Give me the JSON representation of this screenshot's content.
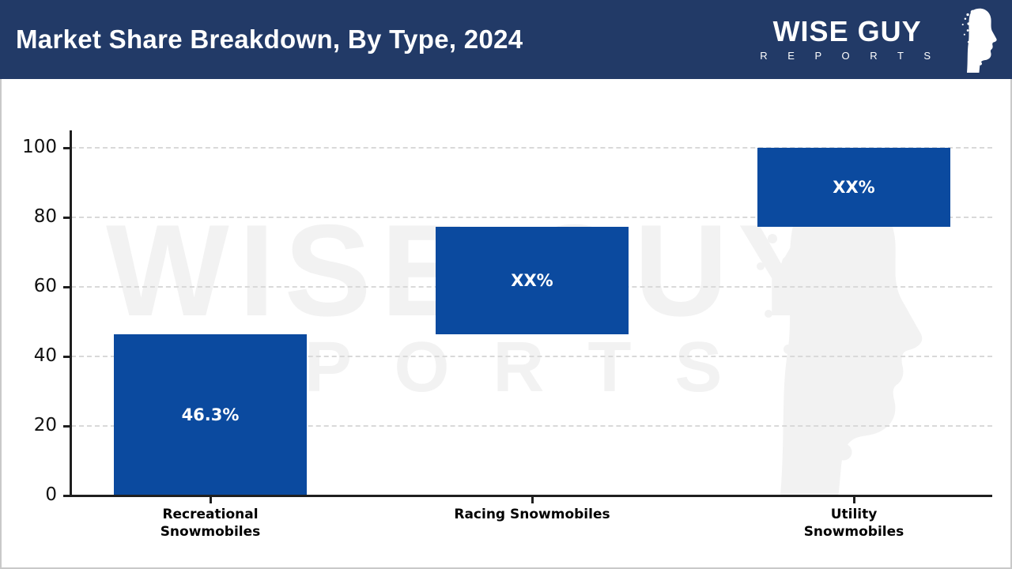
{
  "header": {
    "title": "Market Share Breakdown, By Type, 2024",
    "logo": {
      "brand": "WISE GUY",
      "tagline": "R E P O R T S"
    }
  },
  "watermark": {
    "brand": "WISE GUY",
    "tagline": "R E P O R T S"
  },
  "colors": {
    "header_bg": "#223A67",
    "title_text": "#FFFFFF",
    "bar_fill": "#0B4A9F",
    "bar_label_text": "#FFFFFF",
    "gridline": "#D9D9D9",
    "axis": "#1F1F1F",
    "tick_label_text": "#111111",
    "watermark": "#F2F2F2",
    "page_border": "#C9C9C9"
  },
  "chart_data": {
    "type": "bar",
    "variant": "floating stacked bars (waterfall of market share summing to 100%)",
    "title": "Market Share Breakdown, By Type, 2024",
    "xlabel": "",
    "ylabel": "",
    "ylim": [
      0,
      100
    ],
    "y_ticks": [
      0,
      20,
      40,
      60,
      80,
      100
    ],
    "grid": "horizontal dashed",
    "legend": "none",
    "categories": [
      "Recreational Snowmobiles",
      "Racing Snowmobiles",
      "Utility Snowmobiles"
    ],
    "bars": [
      {
        "category_lines": [
          "Recreational",
          "Snowmobiles"
        ],
        "label": "46.3%",
        "from": 0,
        "to": 46.3,
        "value": 46.3
      },
      {
        "category_lines": [
          "Racing Snowmobiles"
        ],
        "label": "XX%",
        "from": 46.3,
        "to": 77.3,
        "value": 31.0
      },
      {
        "category_lines": [
          "Utility",
          "Snowmobiles"
        ],
        "label": "XX%",
        "from": 77.3,
        "to": 100,
        "value": 22.7
      }
    ]
  }
}
